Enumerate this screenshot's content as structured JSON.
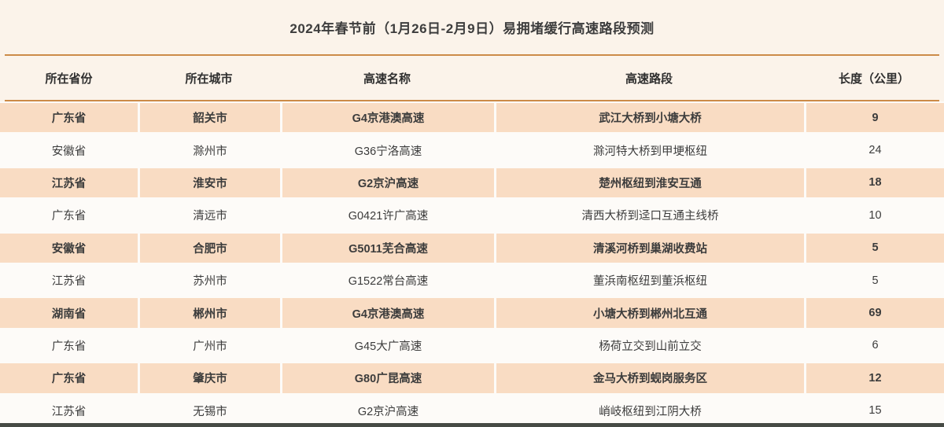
{
  "title": "2024年春节前（1月26日-2月9日）易拥堵缓行高速路段预测",
  "table": {
    "headers": [
      "所在省份",
      "所在城市",
      "高速名称",
      "高速路段",
      "长度（公里）"
    ],
    "rows": [
      {
        "province": "广东省",
        "city": "韶关市",
        "highway": "G4京港澳高速",
        "segment": "武江大桥到小塘大桥",
        "length": "9"
      },
      {
        "province": "安徽省",
        "city": "滁州市",
        "highway": "G36宁洛高速",
        "segment": "滁河特大桥到甲埂枢纽",
        "length": "24"
      },
      {
        "province": "江苏省",
        "city": "淮安市",
        "highway": "G2京沪高速",
        "segment": "楚州枢纽到淮安互通",
        "length": "18"
      },
      {
        "province": "广东省",
        "city": "清远市",
        "highway": "G0421许广高速",
        "segment": "清西大桥到迳口互通主线桥",
        "length": "10"
      },
      {
        "province": "安徽省",
        "city": "合肥市",
        "highway": "G5011芜合高速",
        "segment": "清溪河桥到巢湖收费站",
        "length": "5"
      },
      {
        "province": "江苏省",
        "city": "苏州市",
        "highway": "G1522常台高速",
        "segment": "董浜南枢纽到董浜枢纽",
        "length": "5"
      },
      {
        "province": "湖南省",
        "city": "郴州市",
        "highway": "G4京港澳高速",
        "segment": "小塘大桥到郴州北互通",
        "length": "69"
      },
      {
        "province": "广东省",
        "city": "广州市",
        "highway": "G45大广高速",
        "segment": "杨荷立交到山前立交",
        "length": "6"
      },
      {
        "province": "广东省",
        "city": "肇庆市",
        "highway": "G80广昆高速",
        "segment": "金马大桥到蚬岗服务区",
        "length": "12"
      },
      {
        "province": "江苏省",
        "city": "无锡市",
        "highway": "G2京沪高速",
        "segment": "峭岐枢纽到江阴大桥",
        "length": "15"
      }
    ]
  },
  "colors": {
    "accent_line": "#cc8b48",
    "row_shaded": "#f9dcc3",
    "row_plain": "#fdfbf8",
    "page_bg": "#fbf3ea",
    "text": "#3a3a3a",
    "bottom_bar": "#464b45"
  }
}
